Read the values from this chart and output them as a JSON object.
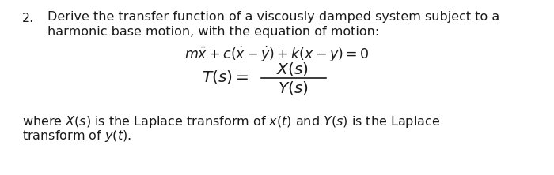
{
  "background_color": "#ffffff",
  "number_label": "2.",
  "line1": "Derive the transfer function of a viscously damped system subject to a",
  "line2": "harmonic base motion, with the equation of motion:",
  "description_line1": "where $X(s)$ is the Laplace transform of $x(t)$ and $Y(s)$ is the Laplace",
  "description_line2": "transform of $y(t)$.",
  "font_size_body": 11.5,
  "font_size_equation": 12.5,
  "text_color": "#1a1a1a"
}
